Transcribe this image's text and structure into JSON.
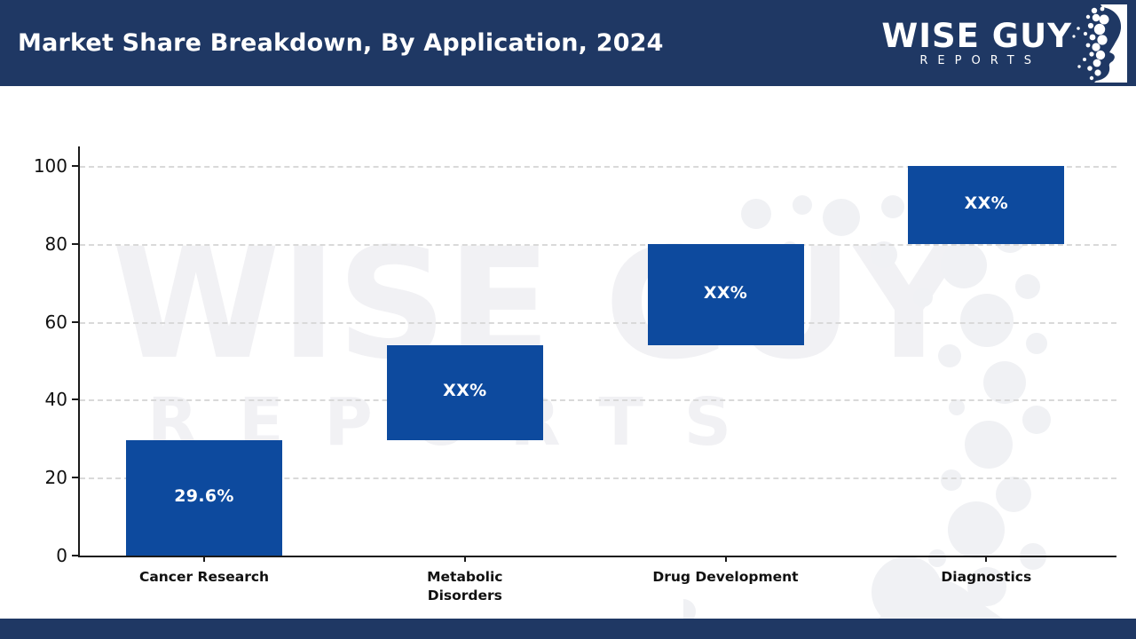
{
  "colors": {
    "navy": "#1f3864",
    "bar_blue": "#0d4a9e",
    "grid": "#d9d9d9",
    "axis": "#1a1a1a",
    "watermark": "#f1f1f4",
    "text_dark": "#111111",
    "white": "#ffffff"
  },
  "header": {
    "title": "Market Share Breakdown, By Application, 2024",
    "logo": {
      "line1": "WISE GUY",
      "line2": "REPORTS",
      "face_icon": "dotted-face-profile-icon"
    }
  },
  "watermark": {
    "line1": "WISE GUY",
    "line2": "REPORTS"
  },
  "chart_data": {
    "type": "bar",
    "subtype": "waterfall",
    "title": "Market Share Breakdown, By Application, 2024",
    "categories": [
      "Cancer Research",
      "Metabolic Disorders",
      "Drug Development",
      "Diagnostics"
    ],
    "xtick_lines": [
      [
        "Cancer Research"
      ],
      [
        "Metabolic",
        "Disorders"
      ],
      [
        "Drug Development"
      ],
      [
        "Diagnostics"
      ]
    ],
    "segments": [
      {
        "category": "Cancer Research",
        "start": 0,
        "end": 29.6,
        "label": "29.6%"
      },
      {
        "category": "Metabolic Disorders",
        "start": 29.6,
        "end": 54,
        "label": "XX%"
      },
      {
        "category": "Drug Development",
        "start": 54,
        "end": 80,
        "label": "XX%"
      },
      {
        "category": "Diagnostics",
        "start": 80,
        "end": 100,
        "label": "XX%"
      }
    ],
    "ylim": [
      0,
      100
    ],
    "yticks": [
      0,
      20,
      40,
      60,
      80,
      100
    ],
    "grid": "horizontal-dashed",
    "legend": "none",
    "bar_color": "#0d4a9e",
    "bar_label_color": "#ffffff"
  }
}
